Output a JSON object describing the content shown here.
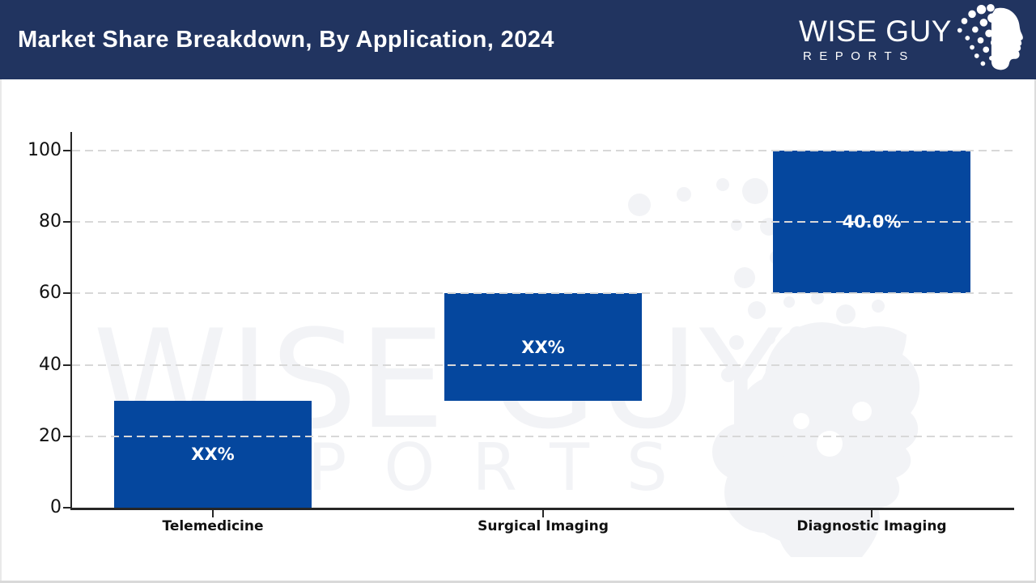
{
  "header": {
    "title": "Market Share Breakdown, By Application, 2024",
    "logo": {
      "line1": "WISE GUY",
      "line2": "REPORTS",
      "icon": "dotted-face-profile-icon"
    }
  },
  "watermark": {
    "line1": "WISE GUY",
    "line2": "REPORTS",
    "icon": "dotted-face-profile-icon"
  },
  "colors": {
    "header_bg": "#213460",
    "bar": "#05479e",
    "grid": "#d8d8d8",
    "axis": "#262626",
    "watermark": "#f2f3f6"
  },
  "chart_data": {
    "type": "bar",
    "variant": "waterfall (floating segment bars)",
    "title": "Market Share Breakdown, By Application, 2024",
    "categories": [
      "Telemedicine",
      "Surgical Imaging",
      "Diagnostic Imaging"
    ],
    "series": [
      {
        "name": "Market Share (%)",
        "segments": [
          {
            "category": "Telemedicine",
            "start": 0,
            "end": 30,
            "label": "XX%"
          },
          {
            "category": "Surgical Imaging",
            "start": 30,
            "end": 60,
            "label": "XX%"
          },
          {
            "category": "Diagnostic Imaging",
            "start": 60,
            "end": 100,
            "label": "40.0%"
          }
        ]
      }
    ],
    "xlabel": "",
    "ylabel": "",
    "ylim": [
      0,
      100
    ],
    "yticks": [
      0,
      20,
      40,
      60,
      80,
      100
    ],
    "grid": {
      "horizontal": true,
      "style": "dashed",
      "color": "#d8d8d8"
    },
    "legend": "none",
    "bar_color": "#05479e",
    "bar_label_color": "#ffffff"
  }
}
